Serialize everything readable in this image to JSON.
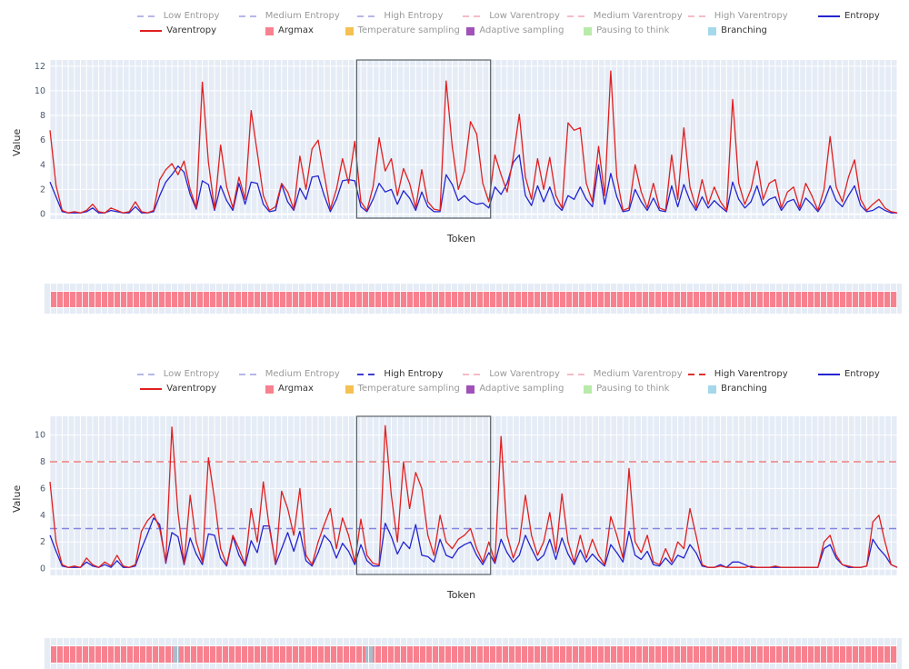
{
  "page": {
    "background": "#ffffff"
  },
  "chart_data": [
    {
      "type": "line",
      "xlabel": "Token",
      "ylabel": "Value",
      "yticks": [
        0,
        2,
        4,
        6,
        8,
        10,
        12
      ],
      "ylim": [
        -0.4,
        12.5
      ],
      "plot_bg": "#e5ecf6",
      "grid_color": "#ffffff",
      "tick_color": "#4a5a6e",
      "selection": {
        "x0": 0.362,
        "x1": 0.52,
        "color": "#5a6368"
      },
      "thresholds": [],
      "legend_rows": [
        [
          {
            "label": "Low Entropy",
            "marker": "dash",
            "color": "#b6b6ea",
            "active": false
          },
          {
            "label": "Medium Entropy",
            "marker": "dash",
            "color": "#b6b6ea",
            "active": false
          },
          {
            "label": "High Entropy",
            "marker": "dash",
            "color": "#b6b6ea",
            "active": false
          },
          {
            "label": "Low Varentropy",
            "marker": "dash",
            "color": "#f5bcc6",
            "active": false
          },
          {
            "label": "Medium Varentropy",
            "marker": "dash",
            "color": "#f5bcc6",
            "active": false
          },
          {
            "label": "High Varentropy",
            "marker": "dash",
            "color": "#f5bcc6",
            "active": false
          },
          {
            "label": "Entropy",
            "marker": "line",
            "color": "#2424cf",
            "active": true
          }
        ],
        [
          {
            "label": "Varentropy",
            "marker": "line",
            "color": "#e02020",
            "active": true
          },
          {
            "label": "Argmax",
            "marker": "square",
            "color": "#f8818f",
            "active": true
          },
          {
            "label": "Temperature sampling",
            "marker": "square",
            "color": "#f4c152",
            "active": false
          },
          {
            "label": "Adaptive sampling",
            "marker": "square",
            "color": "#a052b8",
            "active": false
          },
          {
            "label": "Pausing to think",
            "marker": "square",
            "color": "#b8eaaa",
            "active": false
          },
          {
            "label": "Branching",
            "marker": "square",
            "color": "#a5d8ea",
            "active": true
          }
        ]
      ],
      "series": [
        {
          "name": "Entropy",
          "color": "#2424cf",
          "values": [
            2.6,
            1.4,
            0.2,
            0.1,
            0.1,
            0.1,
            0.2,
            0.5,
            0.1,
            0.1,
            0.3,
            0.2,
            0.1,
            0.1,
            0.6,
            0.1,
            0.1,
            0.2,
            1.5,
            2.6,
            3.2,
            3.9,
            3.4,
            1.6,
            0.4,
            2.7,
            2.4,
            0.3,
            2.3,
            1.1,
            0.3,
            2.5,
            0.8,
            2.6,
            2.5,
            0.8,
            0.2,
            0.3,
            2.4,
            1.0,
            0.3,
            2.1,
            1.2,
            3.0,
            3.1,
            1.5,
            0.2,
            1.2,
            2.7,
            2.8,
            2.7,
            0.6,
            0.2,
            1.2,
            2.5,
            1.8,
            2.0,
            0.8,
            1.9,
            1.3,
            0.3,
            1.8,
            0.6,
            0.2,
            0.2,
            3.2,
            2.4,
            1.1,
            1.5,
            1.0,
            0.8,
            0.9,
            0.5,
            2.2,
            1.6,
            2.5,
            4.2,
            4.8,
            1.5,
            0.7,
            2.3,
            1.0,
            2.2,
            0.8,
            0.3,
            1.5,
            1.2,
            2.2,
            1.2,
            0.6,
            4.0,
            0.8,
            3.3,
            1.4,
            0.2,
            0.3,
            2.0,
            1.0,
            0.3,
            1.3,
            0.3,
            0.2,
            2.3,
            0.6,
            2.4,
            1.1,
            0.3,
            1.4,
            0.5,
            1.1,
            0.6,
            0.2,
            2.6,
            1.2,
            0.5,
            1.0,
            2.3,
            0.7,
            1.2,
            1.4,
            0.3,
            1.0,
            1.2,
            0.3,
            1.3,
            0.8,
            0.2,
            1.0,
            2.3,
            1.1,
            0.6,
            1.5,
            2.3,
            0.7,
            0.2,
            0.3,
            0.6,
            0.3,
            0.1,
            0.1
          ]
        },
        {
          "name": "Varentropy",
          "color": "#e02020",
          "values": [
            6.8,
            2.3,
            0.3,
            0.1,
            0.2,
            0.1,
            0.3,
            0.8,
            0.2,
            0.1,
            0.5,
            0.3,
            0.1,
            0.2,
            1.0,
            0.2,
            0.1,
            0.3,
            2.8,
            3.6,
            4.1,
            3.2,
            4.3,
            2.0,
            0.5,
            10.7,
            4.2,
            0.4,
            5.6,
            2.2,
            0.5,
            3.0,
            1.2,
            8.4,
            5.0,
            1.5,
            0.3,
            0.6,
            2.5,
            1.8,
            0.4,
            4.7,
            2.0,
            5.3,
            6.0,
            3.2,
            0.4,
            2.0,
            4.5,
            2.5,
            5.9,
            1.0,
            0.3,
            2.2,
            6.2,
            3.5,
            4.5,
            1.5,
            3.7,
            2.5,
            0.5,
            3.6,
            1.0,
            0.4,
            0.3,
            10.8,
            5.5,
            2.0,
            3.5,
            7.5,
            6.5,
            2.5,
            1.0,
            4.8,
            3.2,
            1.8,
            4.6,
            8.1,
            3.0,
            1.2,
            4.5,
            2.0,
            4.6,
            1.5,
            0.5,
            7.4,
            6.8,
            7.0,
            2.5,
            1.0,
            5.5,
            1.5,
            11.6,
            3.0,
            0.3,
            0.5,
            4.0,
            1.8,
            0.5,
            2.5,
            0.5,
            0.3,
            4.8,
            1.2,
            7.0,
            2.2,
            0.5,
            2.8,
            0.8,
            2.2,
            1.0,
            0.3,
            9.3,
            2.5,
            0.8,
            2.0,
            4.3,
            1.2,
            2.5,
            2.8,
            0.5,
            1.8,
            2.2,
            0.5,
            2.5,
            1.5,
            0.3,
            2.0,
            6.3,
            2.2,
            1.0,
            3.0,
            4.4,
            1.2,
            0.3,
            0.8,
            1.2,
            0.5,
            0.2,
            0.1
          ]
        }
      ],
      "sampler_strip": {
        "bg": "#e5ecf6",
        "bar_color": "#f8818f",
        "segments": []
      }
    },
    {
      "type": "line",
      "xlabel": "Token",
      "ylabel": "Value",
      "yticks": [
        0,
        2,
        4,
        6,
        8,
        10
      ],
      "ylim": [
        -0.5,
        11.4
      ],
      "plot_bg": "#e5ecf6",
      "grid_color": "#ffffff",
      "tick_color": "#4a5a6e",
      "selection": {
        "x0": 0.362,
        "x1": 0.52,
        "color": "#5a6368"
      },
      "thresholds": [
        {
          "label": "High Entropy",
          "value": 3,
          "color": "#8585de"
        },
        {
          "label": "High Varentropy",
          "value": 8,
          "color": "#ef8080"
        }
      ],
      "legend_rows": [
        [
          {
            "label": "Low Entropy",
            "marker": "dash",
            "color": "#b6b6ea",
            "active": false
          },
          {
            "label": "Medium Entropy",
            "marker": "dash",
            "color": "#b6b6ea",
            "active": false
          },
          {
            "label": "High Entropy",
            "marker": "dash",
            "color": "#3d3dd2",
            "active": true
          },
          {
            "label": "Low Varentropy",
            "marker": "dash",
            "color": "#f5bcc6",
            "active": false
          },
          {
            "label": "Medium Varentropy",
            "marker": "dash",
            "color": "#f5bcc6",
            "active": false
          },
          {
            "label": "High Varentropy",
            "marker": "dash",
            "color": "#e03030",
            "active": true
          },
          {
            "label": "Entropy",
            "marker": "line",
            "color": "#2424cf",
            "active": true
          }
        ],
        [
          {
            "label": "Varentropy",
            "marker": "line",
            "color": "#e02020",
            "active": true
          },
          {
            "label": "Argmax",
            "marker": "square",
            "color": "#f8818f",
            "active": true
          },
          {
            "label": "Temperature sampling",
            "marker": "square",
            "color": "#f4c152",
            "active": false
          },
          {
            "label": "Adaptive sampling",
            "marker": "square",
            "color": "#a052b8",
            "active": false
          },
          {
            "label": "Pausing to think",
            "marker": "square",
            "color": "#b8eaaa",
            "active": false
          },
          {
            "label": "Branching",
            "marker": "square",
            "color": "#a5d8ea",
            "active": true
          }
        ]
      ],
      "series": [
        {
          "name": "Entropy",
          "color": "#2424cf",
          "values": [
            2.5,
            1.3,
            0.2,
            0.1,
            0.1,
            0.1,
            0.5,
            0.2,
            0.1,
            0.3,
            0.1,
            0.6,
            0.1,
            0.1,
            0.2,
            1.5,
            2.6,
            3.8,
            3.3,
            0.4,
            2.7,
            2.4,
            0.3,
            2.3,
            1.1,
            0.3,
            2.6,
            2.5,
            0.8,
            0.2,
            2.4,
            1.0,
            0.2,
            2.1,
            1.2,
            3.2,
            3.2,
            0.3,
            1.5,
            2.7,
            1.3,
            2.8,
            0.6,
            0.2,
            1.2,
            2.5,
            2.0,
            0.8,
            1.9,
            1.3,
            0.3,
            1.8,
            0.6,
            0.2,
            0.2,
            3.4,
            2.4,
            1.1,
            2.0,
            1.5,
            3.3,
            1.0,
            0.9,
            0.5,
            2.2,
            1.0,
            0.8,
            1.5,
            1.8,
            2.0,
            1.0,
            0.3,
            1.2,
            0.4,
            2.2,
            1.2,
            0.5,
            1.0,
            2.5,
            1.5,
            0.6,
            1.0,
            2.2,
            0.7,
            2.3,
            1.1,
            0.3,
            1.4,
            0.5,
            1.1,
            0.6,
            0.2,
            1.8,
            1.2,
            0.5,
            2.8,
            1.0,
            0.7,
            1.3,
            0.3,
            0.2,
            0.8,
            0.3,
            1.0,
            0.8,
            1.8,
            1.2,
            0.2,
            0.1,
            0.1,
            0.3,
            0.1,
            0.5,
            0.5,
            0.3,
            0.1,
            0.1,
            0.1,
            0.1,
            0.1,
            0.1,
            0.1,
            0.1,
            0.1,
            0.1,
            0.1,
            0.1,
            1.5,
            1.8,
            0.8,
            0.3,
            0.1,
            0.1,
            0.1,
            0.2,
            2.2,
            1.5,
            1.0,
            0.3,
            0.1
          ]
        },
        {
          "name": "Varentropy",
          "color": "#e02020",
          "values": [
            6.5,
            2.0,
            0.3,
            0.1,
            0.2,
            0.1,
            0.8,
            0.3,
            0.1,
            0.5,
            0.2,
            1.0,
            0.2,
            0.1,
            0.3,
            2.8,
            3.6,
            4.1,
            3.0,
            0.5,
            10.6,
            4.2,
            0.4,
            5.5,
            2.0,
            0.5,
            8.3,
            5.2,
            1.5,
            0.3,
            2.5,
            1.5,
            0.3,
            4.5,
            2.0,
            6.5,
            3.0,
            0.4,
            5.8,
            4.5,
            2.5,
            6.0,
            1.0,
            0.3,
            2.0,
            3.3,
            4.5,
            1.5,
            3.8,
            2.5,
            0.5,
            3.7,
            1.0,
            0.4,
            0.3,
            10.7,
            5.5,
            2.0,
            8.0,
            4.5,
            7.2,
            6.0,
            2.5,
            1.0,
            4.0,
            2.0,
            1.5,
            2.2,
            2.5,
            3.0,
            1.5,
            0.5,
            2.0,
            0.5,
            9.9,
            2.5,
            0.8,
            2.0,
            5.5,
            2.5,
            1.0,
            2.0,
            4.2,
            1.2,
            5.6,
            2.0,
            0.5,
            2.5,
            0.8,
            2.2,
            1.0,
            0.3,
            3.9,
            2.5,
            0.8,
            7.5,
            2.0,
            1.2,
            2.5,
            0.5,
            0.3,
            1.5,
            0.5,
            2.0,
            1.5,
            4.5,
            2.5,
            0.3,
            0.1,
            0.1,
            0.2,
            0.1,
            0.1,
            0.1,
            0.1,
            0.2,
            0.1,
            0.1,
            0.1,
            0.2,
            0.1,
            0.1,
            0.1,
            0.1,
            0.1,
            0.1,
            0.1,
            2.0,
            2.5,
            1.0,
            0.3,
            0.2,
            0.1,
            0.1,
            0.2,
            3.5,
            4.0,
            2.0,
            0.3,
            0.1
          ]
        }
      ],
      "sampler_strip": {
        "bg": "#e5ecf6",
        "bar_color": "#f8818f",
        "segments": [
          {
            "start": 0.144,
            "width": 0.007,
            "color": "#a9bccb"
          },
          {
            "start": 0.372,
            "width": 0.008,
            "color": "#a9bccb"
          }
        ]
      }
    }
  ]
}
